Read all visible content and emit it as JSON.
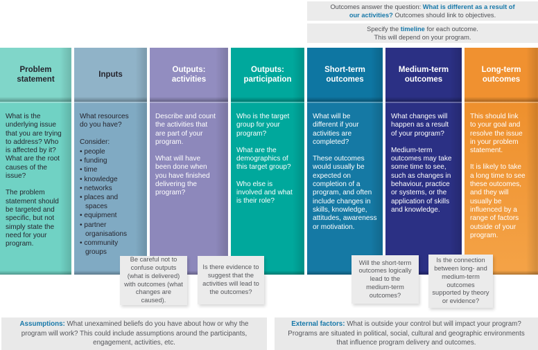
{
  "accent_blue": "#1778a9",
  "top_notes": [
    {
      "prefix": "Outcomes answer the question: ",
      "highlight": "What is different as a result of our activities?",
      "suffix": " Outcomes should link to objectives.",
      "line2": ""
    },
    {
      "prefix": "Specify the ",
      "highlight": "timeline",
      "suffix": " for each outcome.",
      "line2": "This will depend on your program."
    }
  ],
  "columns": [
    {
      "title": "Problem statement",
      "colors": {
        "header": "#80d6c9",
        "body": "#70d2c4",
        "text": "#25252e"
      },
      "blocks": [
        {
          "type": "p",
          "text": "What is the underlying issue that you are trying to address? Who is affected by it? What are the root causes of the issue?"
        },
        {
          "type": "p",
          "text": "The problem statement should be targeted and specific, but not simply state the need for your program."
        }
      ]
    },
    {
      "title": "Inputs",
      "colors": {
        "header": "#90b3c8",
        "body": "#80aac3",
        "text": "#25252e"
      },
      "blocks": [
        {
          "type": "p",
          "text": "What resources do you have?"
        },
        {
          "type": "p",
          "tight": true,
          "text": "Consider:"
        },
        {
          "type": "list",
          "items": [
            "people",
            "funding",
            "time",
            "knowledge",
            "networks",
            "places and spaces",
            "equipment",
            "partner organisations",
            "community groups"
          ]
        }
      ]
    },
    {
      "title": "Outputs:\nactivities",
      "colors": {
        "header": "#928dc0",
        "body": "#8d88bb",
        "text": "#ffffff"
      },
      "blocks": [
        {
          "type": "p",
          "text": "Describe and count the activities that are part of your program."
        },
        {
          "type": "p",
          "text": "What will have been done when you have finished delivering the program?"
        }
      ]
    },
    {
      "title": "Outputs:\nparticipation",
      "colors": {
        "header": "#00a89c",
        "body": "#00a89c",
        "text": "#ffffff"
      },
      "blocks": [
        {
          "type": "p",
          "text": "Who is the target group for your program?"
        },
        {
          "type": "p",
          "text": "What are the demographics of this target group?"
        },
        {
          "type": "p",
          "text": "Who else is involved and what is their role?"
        }
      ]
    },
    {
      "title": "Short-term outcomes",
      "colors": {
        "header": "#0e76a2",
        "body": "#1579a4",
        "text": "#ffffff"
      },
      "blocks": [
        {
          "type": "p",
          "text": "What will be different if your activities are completed?"
        },
        {
          "type": "p",
          "text": "These outcomes would usually be expected on completion of a program, and often include changes in skills, knowledge, attitudes, awareness or motivation."
        }
      ]
    },
    {
      "title": "Medium-term outcomes",
      "colors": {
        "header": "#2b3084",
        "body": "#2b3084",
        "text": "#ffffff"
      },
      "blocks": [
        {
          "type": "p",
          "text": "What changes will happen as a result of your program?"
        },
        {
          "type": "p",
          "text": "Medium-term outcomes may take some time to see, such as changes in behaviour, practice or systems, or the application of skills and knowledge."
        }
      ]
    },
    {
      "title": "Long-term outcomes",
      "colors": {
        "header": "#f09130",
        "body": "#ee902d",
        "body2": "#f4a347",
        "text": "#ffffff"
      },
      "blocks": [
        {
          "type": "p",
          "text": "This should link to your goal and resolve the issue in your problem statement."
        },
        {
          "type": "p",
          "text": "It is likely to take a long time to see these outcomes, and they will usually be influenced by a range of factors outside of your program."
        }
      ]
    }
  ],
  "callouts": [
    {
      "text": "Be careful not to confuse outputs (what is delivered) with outcomes (what changes are caused)."
    },
    {
      "text": "Is there evidence to suggest that the activities will lead to the outcomes?"
    },
    {
      "text": "Will the short-term outcomes logically lead to the medium-term outcomes?"
    },
    {
      "text": "Is the connection between long- and medium-term outcomes supported by theory or evidence?"
    }
  ],
  "footers": [
    {
      "label": "Assumptions:",
      "text": " What unexamined beliefs do you have about how or why the program will work? This could include assumptions around the participants, engagement, activities, etc."
    },
    {
      "label": "External factors:",
      "text": " What is outside your control but will impact your program? Programs are situated in political, social, cultural and geographic environments that influence program delivery and outcomes."
    }
  ]
}
